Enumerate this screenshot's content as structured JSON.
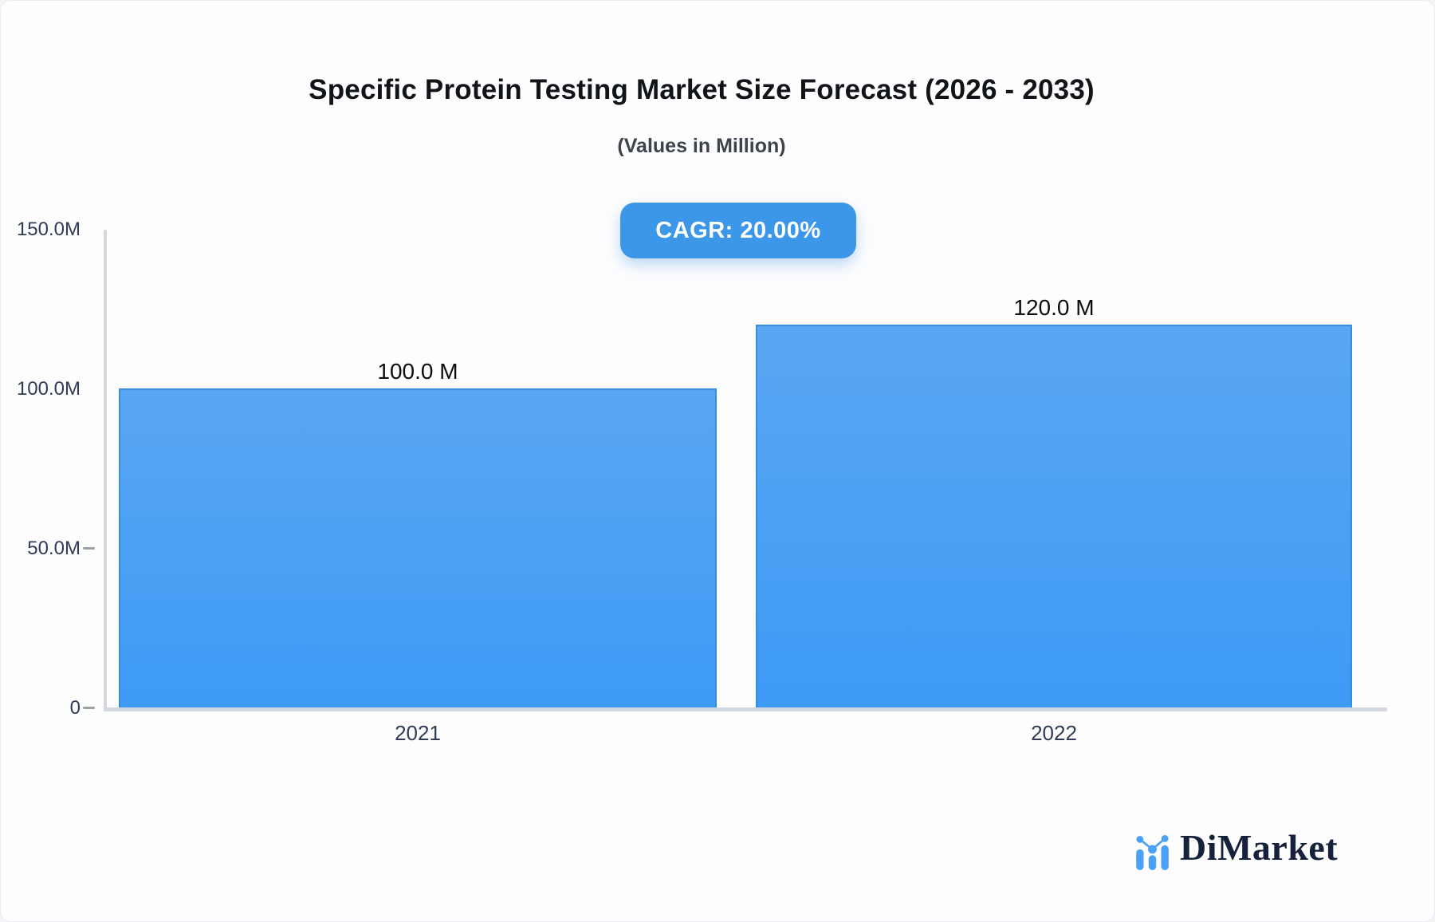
{
  "chart_data": {
    "type": "bar",
    "title": "Specific Protein Testing Market Size Forecast (2026 - 2033)",
    "subtitle": "(Values in Million)",
    "cagr_badge": "CAGR: 20.00%",
    "categories": [
      "2021",
      "2022"
    ],
    "values": [
      100.0,
      120.0
    ],
    "value_labels": [
      "100.0 M",
      "120.0 M"
    ],
    "unit": "Million",
    "xlabel": "",
    "ylabel": "",
    "ylim": [
      0,
      150
    ],
    "y_ticks": [
      "150.0M",
      "100.0M",
      "50.0M",
      "0"
    ],
    "legend": "none",
    "grid": false
  },
  "branding": {
    "logo_text": "DiMarket",
    "logo_icon": "mini-bar-chart-icon"
  },
  "colors": {
    "bar_top": "#5aa7f3",
    "bar_bottom": "#3d9af5",
    "bar_border": "#3a8cdc",
    "badge_bg": "#3d97e9",
    "badge_text": "#ffffff",
    "axis_line": "#d3d7de",
    "tick": "#99a1ad",
    "axis_label_color": "#303c55",
    "title_color": "#111418",
    "logo_text_color": "#16213c",
    "logo_icon_color": "#4aa1f6"
  }
}
